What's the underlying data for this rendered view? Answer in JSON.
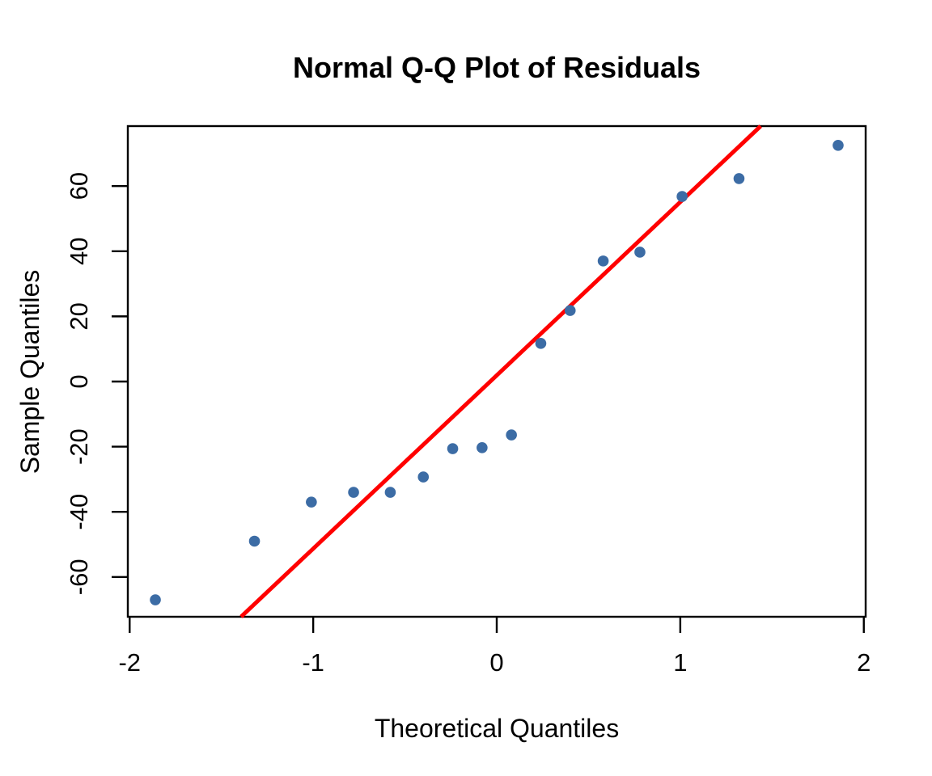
{
  "chart_data": {
    "type": "scatter",
    "title": "Normal Q-Q Plot of Residuals",
    "xlabel": "Theoretical Quantiles",
    "ylabel": "Sample Quantiles",
    "x_ticks": [
      -2,
      -1,
      0,
      1,
      2
    ],
    "y_ticks": [
      -60,
      -40,
      -20,
      0,
      20,
      40,
      60
    ],
    "xlim": [
      -2.01,
      2.01
    ],
    "ylim": [
      -72.2,
      78.4
    ],
    "grid": false,
    "legend": "none",
    "points": [
      {
        "x": -1.86,
        "y": -67.0
      },
      {
        "x": -1.32,
        "y": -49.0
      },
      {
        "x": -1.01,
        "y": -37.0
      },
      {
        "x": -0.78,
        "y": -34.0
      },
      {
        "x": -0.58,
        "y": -34.0
      },
      {
        "x": -0.4,
        "y": -29.3
      },
      {
        "x": -0.24,
        "y": -20.6
      },
      {
        "x": -0.08,
        "y": -20.3
      },
      {
        "x": 0.08,
        "y": -16.4
      },
      {
        "x": 0.24,
        "y": 11.7
      },
      {
        "x": 0.4,
        "y": 21.8
      },
      {
        "x": 0.58,
        "y": 37.0
      },
      {
        "x": 0.78,
        "y": 39.7
      },
      {
        "x": 1.01,
        "y": 56.8
      },
      {
        "x": 1.32,
        "y": 62.3
      },
      {
        "x": 1.86,
        "y": 72.5
      }
    ],
    "reference_line": {
      "slope": 53.2,
      "intercept": 1.9
    },
    "colors": {
      "point": "#3C6CA5",
      "line": "#FF0000",
      "axis": "#000000",
      "background": "#FFFFFF"
    }
  }
}
